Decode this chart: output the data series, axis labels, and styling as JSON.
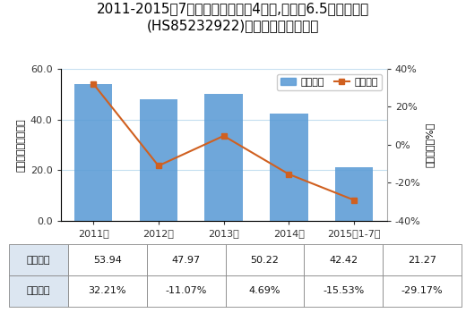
{
  "title_line1": "2011-2015年7月未录制的宽度超4毫米,但不超6.5毫米的磁带",
  "title_line2": "(HS85232922)出口总额及增速统计",
  "categories": [
    "2011年",
    "2012年",
    "2013年",
    "2014年",
    "2015年1-7月"
  ],
  "bar_values": [
    53.94,
    47.97,
    50.22,
    42.42,
    21.27
  ],
  "line_values": [
    32.21,
    -11.07,
    4.69,
    -15.53,
    -29.17
  ],
  "bar_color": "#5B9BD5",
  "line_color": "#D06020",
  "ylabel_left": "出口金额（万美元）",
  "ylabel_right": "同比增速（%）",
  "ylim_left": [
    0,
    60
  ],
  "ylim_right": [
    -40,
    40
  ],
  "yticks_left": [
    0.0,
    20.0,
    40.0,
    60.0
  ],
  "yticks_right": [
    -40,
    -20,
    0,
    20,
    40
  ],
  "ytick_labels_right": [
    "-40%",
    "-20%",
    "0%",
    "20%",
    "40%"
  ],
  "legend_bar": "出口金额",
  "legend_line": "同比增长",
  "table_row1_label": "出口金额",
  "table_row2_label": "同比增长",
  "table_row1_values": [
    "53.94",
    "47.97",
    "50.22",
    "42.42",
    "21.27"
  ],
  "table_row2_values": [
    "32.21%",
    "-11.07%",
    "4.69%",
    "-15.53%",
    "-29.17%"
  ],
  "grid_color": "#C5DFF0",
  "background_color": "#FFFFFF",
  "title_fontsize": 11,
  "axis_label_fontsize": 8,
  "tick_fontsize": 8,
  "legend_fontsize": 8,
  "table_fontsize": 8
}
